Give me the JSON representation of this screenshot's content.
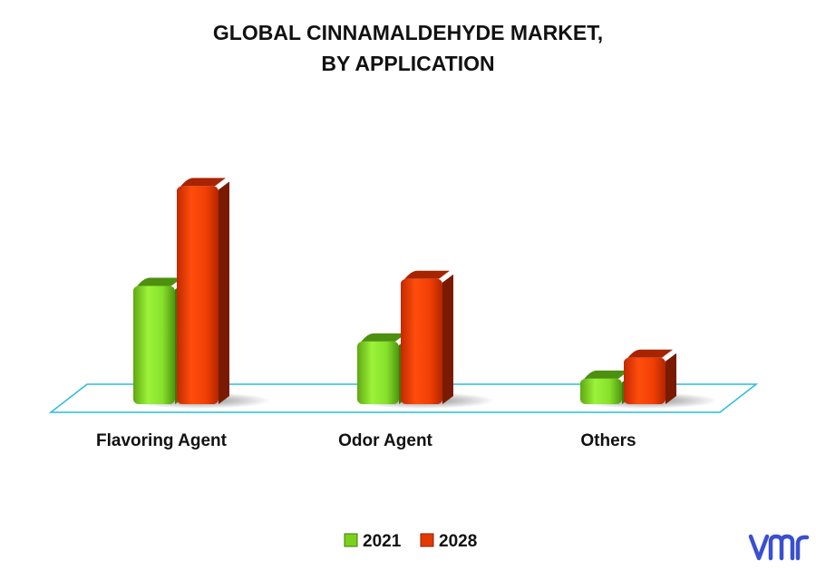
{
  "chart_data": {
    "type": "bar",
    "title": [
      "GLOBAL CINNAMALDEHYDE MARKET,",
      "BY APPLICATION"
    ],
    "categories": [
      "Flavoring Agent",
      "Odor Agent",
      "Others"
    ],
    "series": [
      {
        "name": "2021",
        "values": [
          5.1,
          2.7,
          1.1
        ],
        "color": "#7ad11c"
      },
      {
        "name": "2028",
        "values": [
          9.4,
          5.4,
          2.0
        ],
        "color": "#e33a00"
      }
    ],
    "xlabel": "",
    "ylabel": "",
    "ylim": [
      0,
      10
    ],
    "grid": false,
    "legend": "bottom"
  },
  "brand": {
    "logo": "vmr",
    "logo_color": "#3a4fd0"
  }
}
